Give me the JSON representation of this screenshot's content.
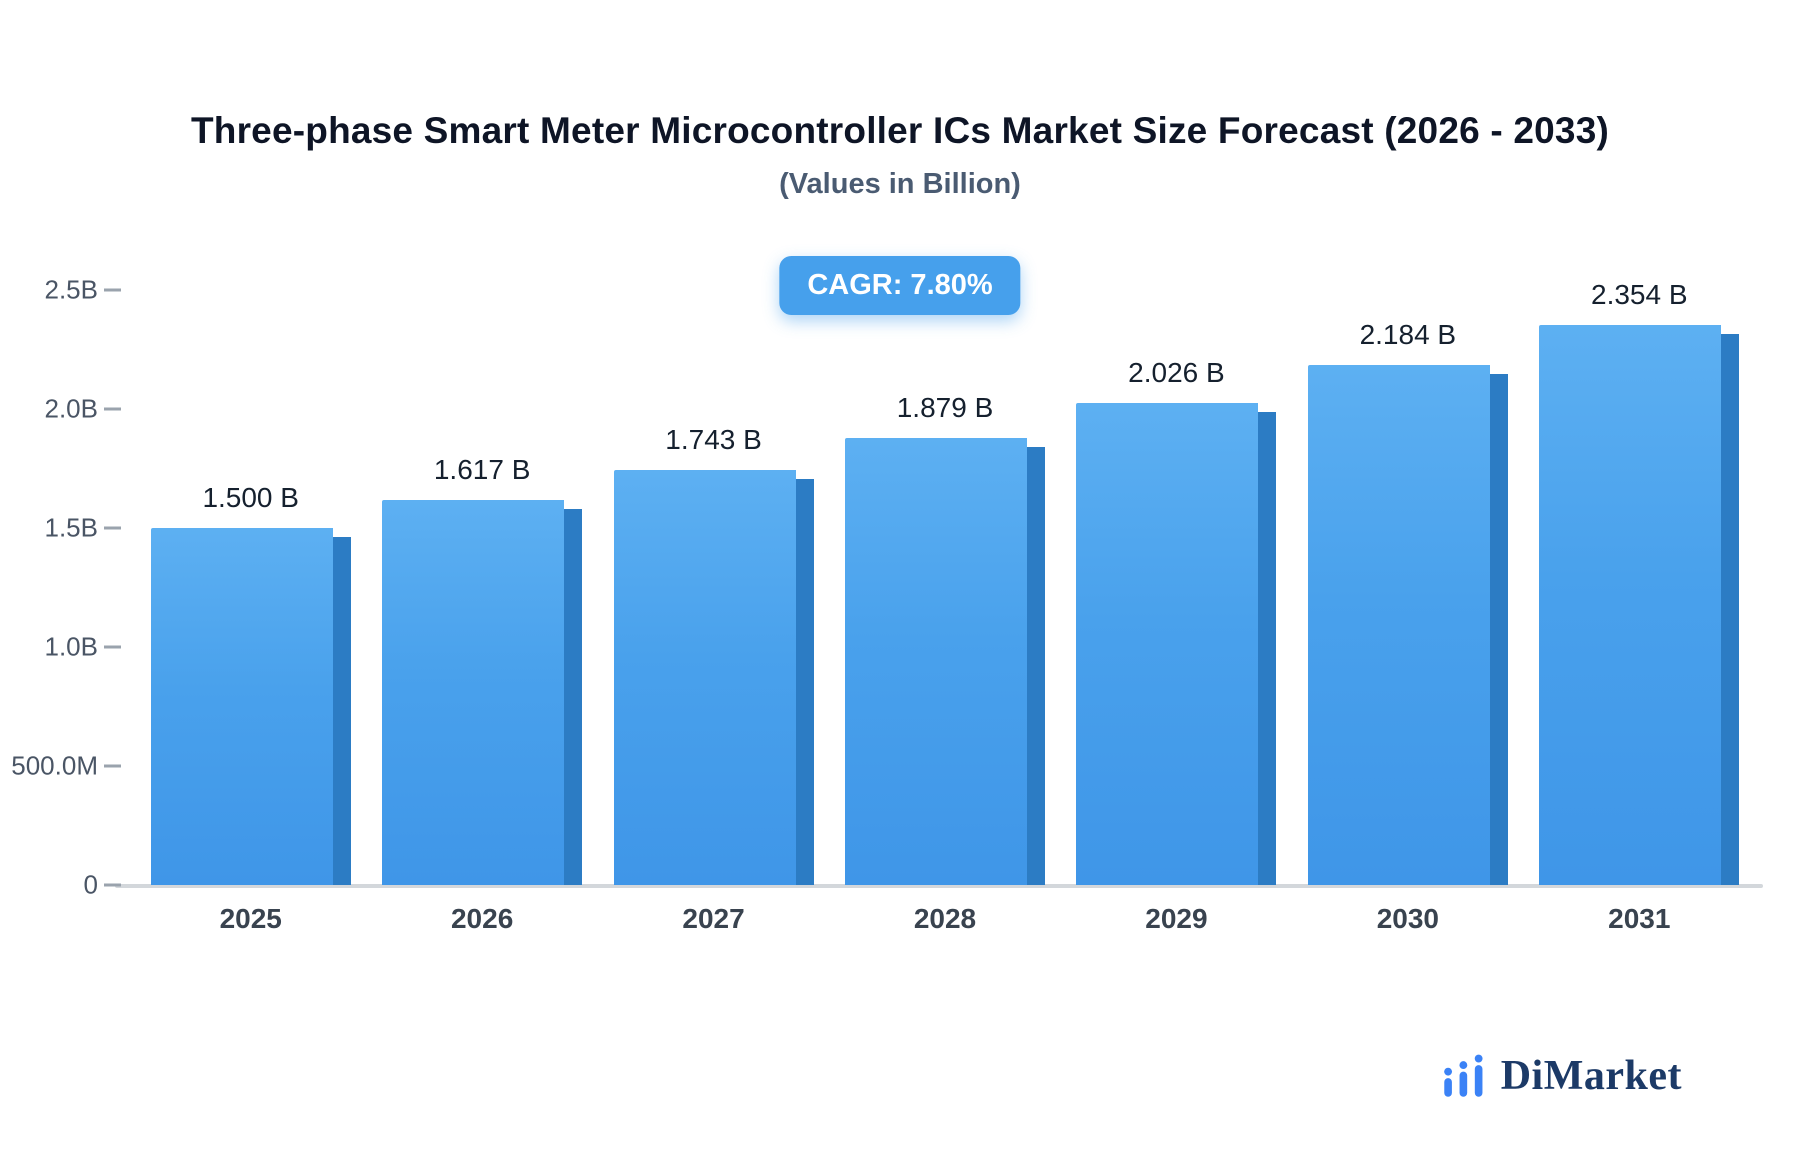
{
  "title": "Three-phase Smart Meter Microcontroller ICs Market Size Forecast (2026 - 2033)",
  "subtitle": "(Values in Billion)",
  "cagr_badge": "CAGR: 7.80%",
  "brand": {
    "name": "DiMarket"
  },
  "chart_data": {
    "type": "bar",
    "title": "Three-phase Smart Meter Microcontroller ICs Market Size Forecast (2026 - 2033)",
    "subtitle": "(Values in Billion)",
    "categories": [
      "2025",
      "2026",
      "2027",
      "2028",
      "2029",
      "2030",
      "2031"
    ],
    "values": [
      1.5,
      1.617,
      1.743,
      1.879,
      2.026,
      2.184,
      2.354
    ],
    "value_labels": [
      "1.500 B",
      "1.617 B",
      "1.743 B",
      "1.879 B",
      "2.026 B",
      "2.184 B",
      "2.354 B"
    ],
    "xlabel": "",
    "ylabel": "",
    "ylim": [
      0,
      2.5
    ],
    "y_ticks": [
      {
        "label": "2.5B",
        "value": 2.5
      },
      {
        "label": "2.0B",
        "value": 2.0
      },
      {
        "label": "1.5B",
        "value": 1.5
      },
      {
        "label": "1.0B",
        "value": 1.0
      },
      {
        "label": "500.0M",
        "value": 0.5
      },
      {
        "label": "0",
        "value": 0
      }
    ],
    "grid": "off",
    "legend": "none",
    "colors": {
      "bar_top": "#5db0f2",
      "bar_bottom": "#3f96e8",
      "bar_side": "#2c7cc4",
      "badge": "#46a0ec",
      "brand_icon": "#3b82f6",
      "brand_text": "#1c3a67",
      "baseline": "#d3d7db"
    }
  }
}
